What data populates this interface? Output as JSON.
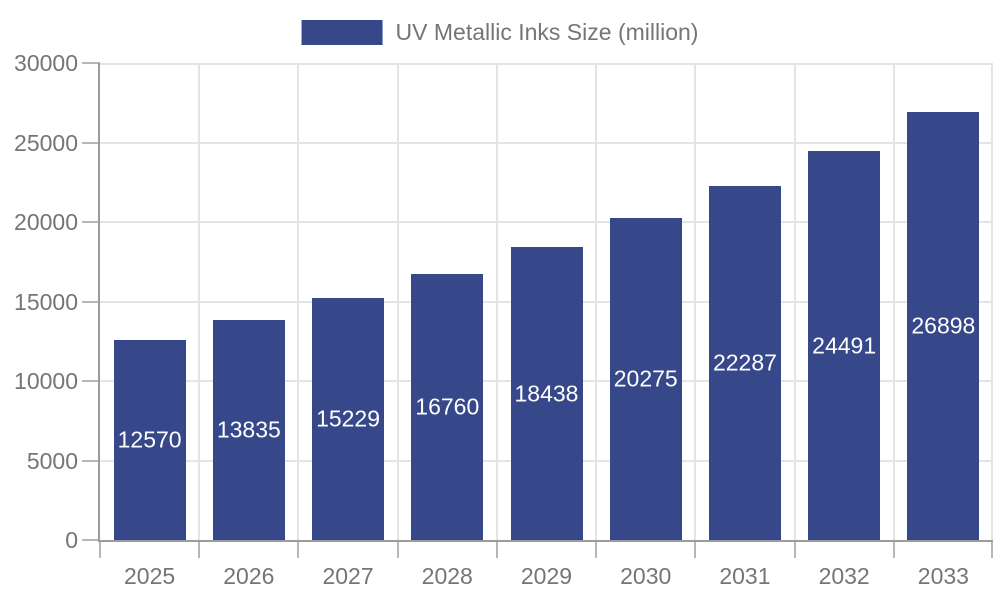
{
  "chart_data": {
    "type": "bar",
    "title": "",
    "categories": [
      "2025",
      "2026",
      "2027",
      "2028",
      "2029",
      "2030",
      "2031",
      "2032",
      "2033"
    ],
    "series": [
      {
        "name": "UV Metallic Inks Size (million)",
        "values": [
          12570,
          13835,
          15229,
          16760,
          18438,
          20275,
          22287,
          24491,
          26898
        ]
      }
    ],
    "xlabel": "",
    "ylabel": "",
    "ylim": [
      0,
      30000
    ],
    "yticks": [
      0,
      5000,
      10000,
      15000,
      20000,
      25000,
      30000
    ],
    "grid": true,
    "legend_position": "top-center",
    "value_labels": "inside-center",
    "colors": {
      "bar": "#36478a",
      "bar_value_text": "#ffffff",
      "axis_text": "#757575",
      "grid_line": "#e4e4e4",
      "plot_border": "#e4e4e4",
      "axis_line": "#9c9c9c",
      "tick_mark": "#b6b6b6",
      "background": "#ffffff"
    }
  }
}
